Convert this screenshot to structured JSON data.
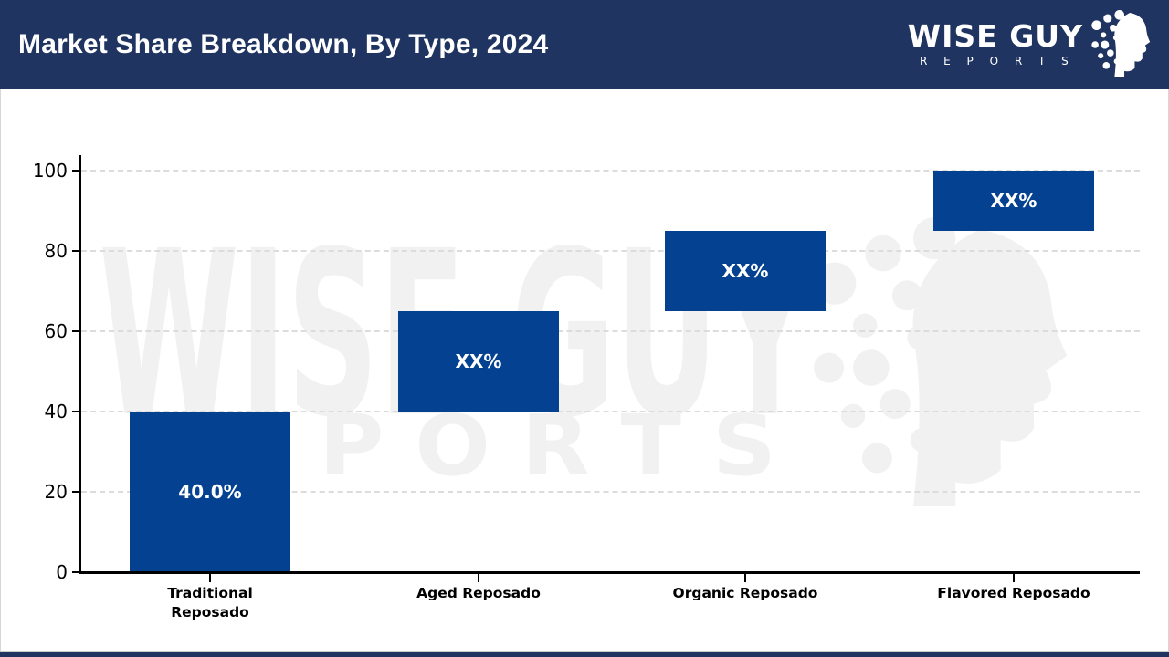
{
  "header": {
    "title": "Market Share Breakdown, By Type, 2024",
    "logo": {
      "name": "WISE GUY",
      "sub": "R E P O R T S"
    }
  },
  "watermark": {
    "line1": "WISE GUY",
    "line2": "R E P O R T S"
  },
  "colors": {
    "header_bg": "#1f3461",
    "bar": "#044190",
    "grid": "#dcdcdc",
    "axis": "#000000",
    "watermark": "#f1f1f1",
    "footer_bg": "#1f3461"
  },
  "chart_data": {
    "type": "bar",
    "subtype": "floating-waterfall",
    "title": "Market Share Breakdown, By Type, 2024",
    "xlabel": "",
    "ylabel": "",
    "ylim": [
      0,
      105
    ],
    "yticks": [
      0,
      20,
      40,
      60,
      80,
      100
    ],
    "grid": "horizontal-dashed",
    "legend": "none",
    "categories": [
      "Traditional Reposado",
      "Aged Reposado",
      "Organic Reposado",
      "Flavored Reposado"
    ],
    "bars": [
      {
        "category": "Traditional Reposado",
        "lines": [
          "Traditional",
          "Reposado"
        ],
        "start": 0,
        "end": 40,
        "label": "40.0%"
      },
      {
        "category": "Aged Reposado",
        "lines": [
          "Aged Reposado"
        ],
        "start": 40,
        "end": 65,
        "label": "XX%"
      },
      {
        "category": "Organic Reposado",
        "lines": [
          "Organic Reposado"
        ],
        "start": 65,
        "end": 85,
        "label": "XX%"
      },
      {
        "category": "Flavored Reposado",
        "lines": [
          "Flavored Reposado"
        ],
        "start": 85,
        "end": 100,
        "label": "XX%"
      }
    ]
  }
}
